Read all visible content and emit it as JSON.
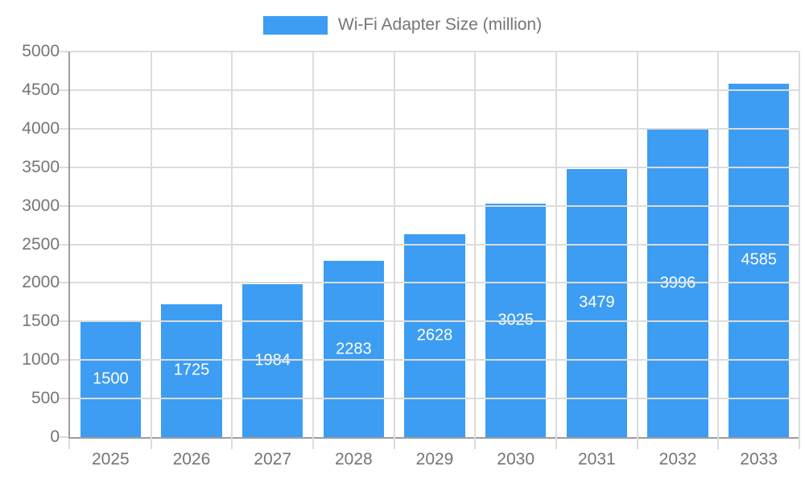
{
  "chart_data": {
    "type": "bar",
    "title": "",
    "legend_entries": [
      "Wi-Fi Adapter Size (million)"
    ],
    "legend_position": "top-center",
    "categories": [
      "2025",
      "2026",
      "2027",
      "2028",
      "2029",
      "2030",
      "2031",
      "2032",
      "2033"
    ],
    "series": [
      {
        "name": "Wi-Fi Adapter Size (million)",
        "values": [
          1500,
          1725,
          1984,
          2283,
          2628,
          3025,
          3479,
          3996,
          4585
        ]
      }
    ],
    "data_labels": {
      "visible": true,
      "position": "inside-center",
      "values": [
        "1500",
        "1725",
        "1984",
        "2283",
        "2628",
        "3025",
        "3479",
        "3996",
        "4585"
      ]
    },
    "xlabel": "",
    "ylabel": "",
    "ylim": [
      0,
      5000
    ],
    "ytick_step": 500,
    "yticks": [
      0,
      500,
      1000,
      1500,
      2000,
      2500,
      3000,
      3500,
      4000,
      4500,
      5000
    ],
    "grid": "horizontal-and-vertical",
    "colors": {
      "bar": "#3d9df3",
      "bar_label": "#ffffff",
      "axis_text": "#757575",
      "grid_line": "#dcdcdc",
      "axis_line": "#9e9e9e",
      "background": "#ffffff"
    }
  }
}
